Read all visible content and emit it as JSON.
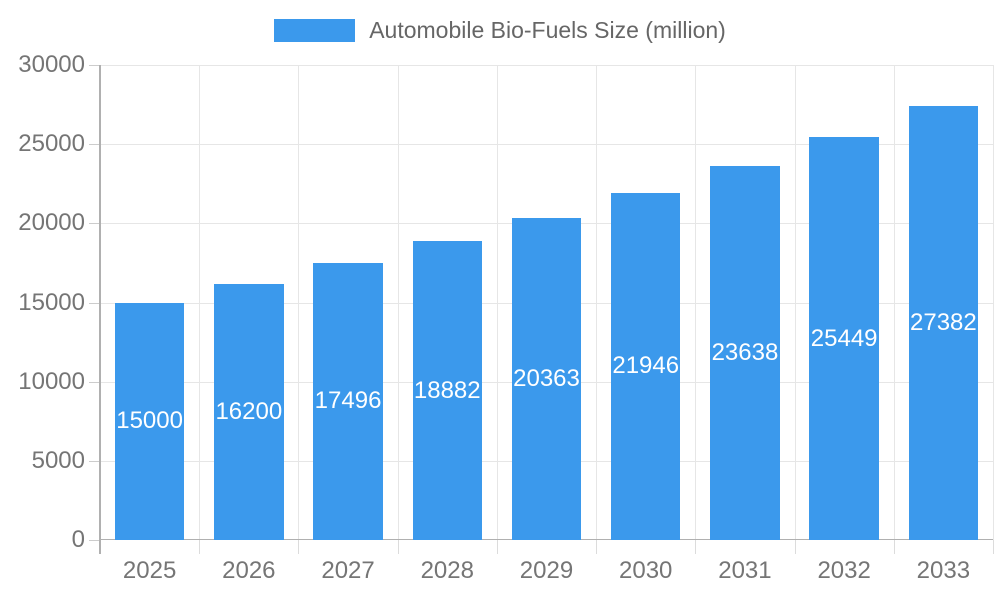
{
  "legend": {
    "label": "Automobile Bio-Fuels Size (million)"
  },
  "colors": {
    "bar": "#3b99ec",
    "grid": "#e6e6e6",
    "axis": "#b0b0b0",
    "ytick": "#cccccc",
    "xtick": "#dcdcdc",
    "tick_label": "#757575",
    "legend_text": "#666666",
    "value_label": "#ffffff",
    "background": "#ffffff"
  },
  "chart_data": {
    "type": "bar",
    "title": "Automobile Bio-Fuels Size (million)",
    "series": [
      {
        "name": "Automobile Bio-Fuels Size (million)",
        "values": [
          15000,
          16200,
          17496,
          18882,
          20363,
          21946,
          23638,
          25449,
          27382
        ]
      }
    ],
    "categories": [
      "2025",
      "2026",
      "2027",
      "2028",
      "2029",
      "2030",
      "2031",
      "2032",
      "2033"
    ],
    "xlabel": "",
    "ylabel": "",
    "ylim": [
      0,
      30000
    ],
    "yticks": [
      0,
      5000,
      10000,
      15000,
      20000,
      25000,
      30000
    ],
    "grid": true,
    "vertical_gridlines": true,
    "legend_position": "top-center",
    "bar_width_fraction": 0.7,
    "value_label_position": "inside-center",
    "bar_color": "#3b99ec"
  }
}
